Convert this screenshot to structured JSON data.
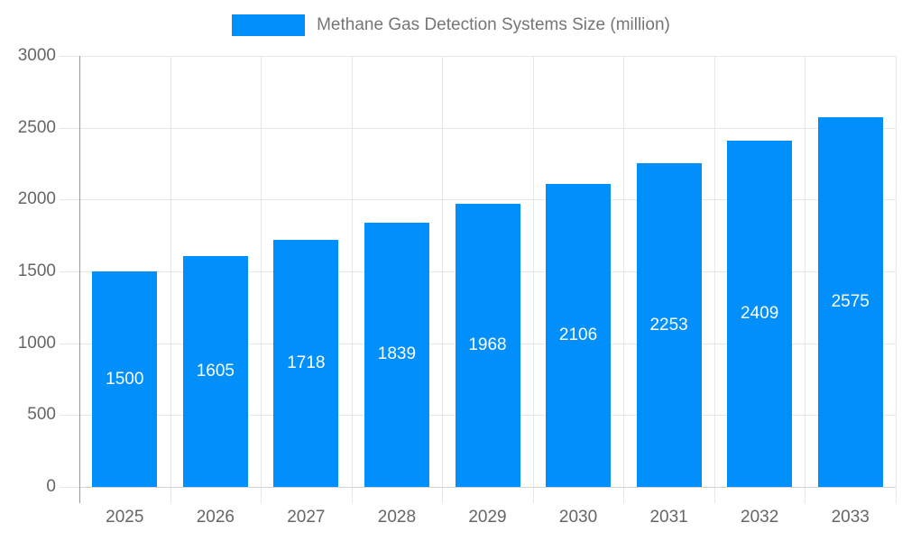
{
  "legend": {
    "label": "Methane Gas Detection Systems Size (million)",
    "swatch_color": "#008FFB"
  },
  "chart_data": {
    "type": "bar",
    "title": "",
    "xlabel": "",
    "ylabel": "",
    "categories": [
      "2025",
      "2026",
      "2027",
      "2028",
      "2029",
      "2030",
      "2031",
      "2032",
      "2033"
    ],
    "series": [
      {
        "name": "Methane Gas Detection Systems Size (million)",
        "values": [
          1500,
          1605,
          1718,
          1839,
          1968,
          2106,
          2253,
          2409,
          2575
        ]
      }
    ],
    "value_labels_shown": true,
    "ylim": [
      0,
      3000
    ],
    "yticks": [
      0,
      500,
      1000,
      1500,
      2000,
      2500,
      3000
    ],
    "grid": true,
    "legend_position": "top",
    "colors": {
      "bar": "#008FFB",
      "value_label": "#ffffff",
      "axis_label": "#666666",
      "legend_label": "#757575",
      "gridline": "#e7e7e7",
      "y_axis_line": "#9a9a9a",
      "background": "#ffffff"
    }
  }
}
